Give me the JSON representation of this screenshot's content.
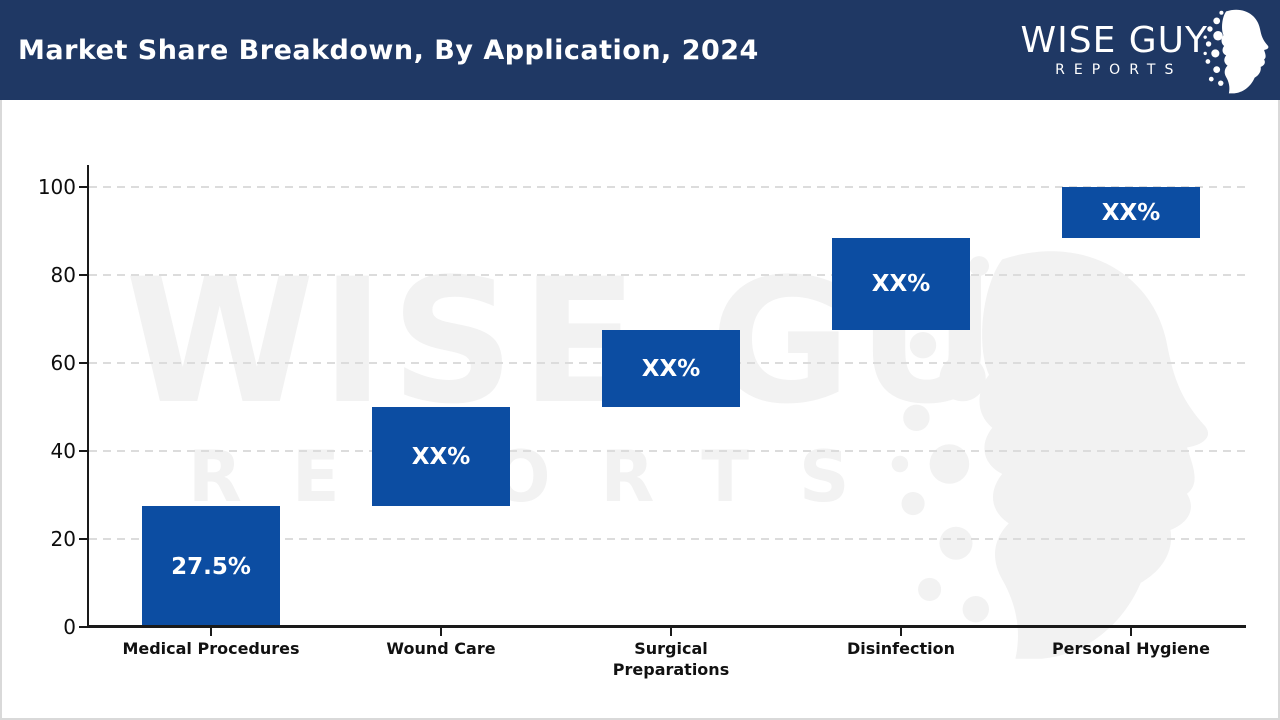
{
  "header": {
    "title": "Market Share Breakdown, By Application, 2024",
    "bg_color": "#1f3864",
    "logo": {
      "line1": "WISE GUY",
      "line2": "REPORTS"
    }
  },
  "watermark": {
    "line1": "WISE GUY",
    "line2": "REPORTS"
  },
  "chart_data": {
    "type": "bar",
    "variant": "waterfall",
    "title": "Market Share Breakdown, By Application, 2024",
    "categories": [
      "Medical Procedures",
      "Wound Care",
      "Surgical\nPreparations",
      "Disinfection",
      "Personal Hygiene"
    ],
    "series": [
      {
        "name": "Market share",
        "segments": [
          {
            "from": 0,
            "to": 27.5
          },
          {
            "from": 27.5,
            "to": 50
          },
          {
            "from": 50,
            "to": 67.5
          },
          {
            "from": 67.5,
            "to": 88.5
          },
          {
            "from": 88.5,
            "to": 100
          }
        ]
      }
    ],
    "bar_labels": [
      "27.5%",
      "XX%",
      "XX%",
      "XX%",
      "XX%"
    ],
    "yticks": [
      0,
      20,
      40,
      60,
      80,
      100
    ],
    "ylim": [
      0,
      105
    ],
    "xlabel": "",
    "ylabel": "",
    "grid": "horizontal-dashed",
    "legend": "none",
    "bar_color": "#0c4da2",
    "bar_label_color": "#ffffff"
  }
}
